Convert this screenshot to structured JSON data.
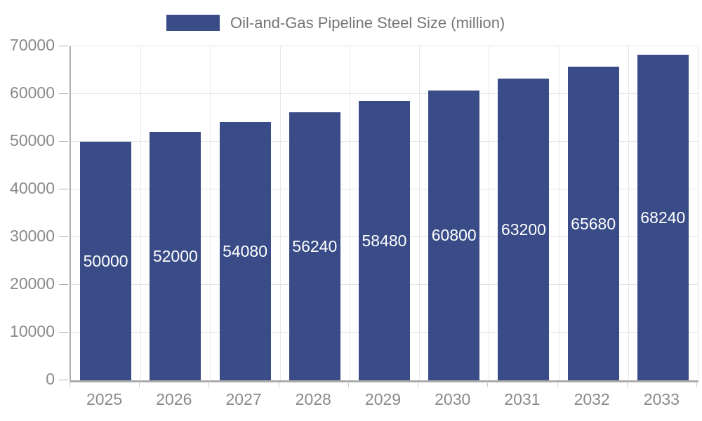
{
  "legend": {
    "label": "Oil-and-Gas Pipeline Steel Size (million)"
  },
  "chart_data": {
    "type": "bar",
    "title": "Oil-and-Gas Pipeline Steel Size (million)",
    "categories": [
      "2025",
      "2026",
      "2027",
      "2028",
      "2029",
      "2030",
      "2031",
      "2032",
      "2033"
    ],
    "values": [
      50000,
      52000,
      54080,
      56240,
      58480,
      60800,
      63200,
      65680,
      68240
    ],
    "value_labels": [
      "50000",
      "52000",
      "54080",
      "56240",
      "58480",
      "60800",
      "63200",
      "65680",
      "68240"
    ],
    "xlabel": "",
    "ylabel": "",
    "ylim": [
      0,
      70000
    ],
    "yticks": [
      0,
      10000,
      20000,
      30000,
      40000,
      50000,
      60000,
      70000
    ],
    "grid": true,
    "legend_position": "top-center",
    "value_label_position": "inside-center",
    "colors": {
      "bar": "#394C87",
      "value_label": "#ffffff",
      "axis_label": "#8a8a8a",
      "legend_text": "#757575",
      "grid_line": "#e3e3e3",
      "axis_line": "#b0b0b0"
    }
  }
}
